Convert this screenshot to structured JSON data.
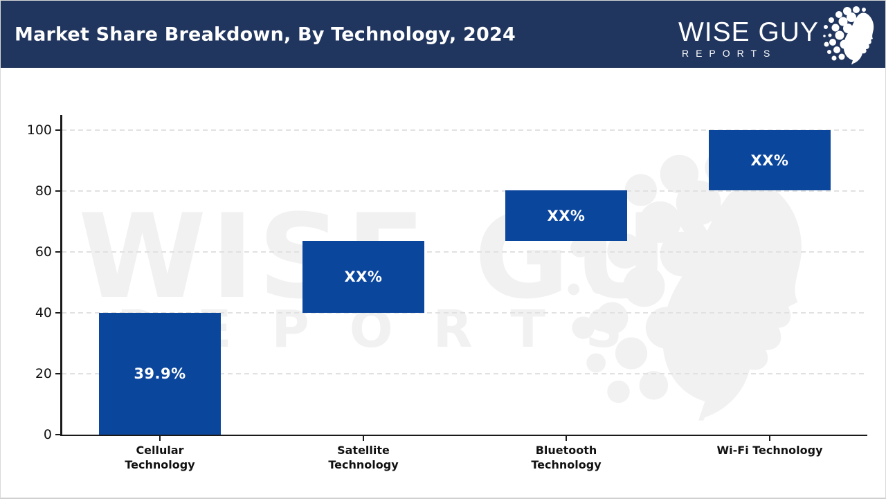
{
  "header": {
    "title": "Market Share Breakdown, By Technology, 2024",
    "bg_color": "#21365f",
    "logo": {
      "line1": "WISE GUY",
      "line2": "REPORTS",
      "icon": "face-profile-dots-icon",
      "color": "#ffffff"
    }
  },
  "watermark": {
    "line1": "WISE GUY",
    "line2": "REPORTS",
    "icon": "face-profile-dots-icon",
    "color": "#f1f1f1"
  },
  "chart_data": {
    "type": "bar",
    "subtype": "waterfall",
    "title": "Market Share Breakdown, By Technology, 2024",
    "xlabel": "",
    "ylabel": "",
    "ylim": [
      0,
      105
    ],
    "yticks": [
      0,
      20,
      40,
      60,
      80,
      100
    ],
    "grid": "horizontal dashed",
    "legend": "none",
    "bar_color": "#0b469d",
    "bar_label_color": "#ffffff",
    "axis_color": "#1a1a1a",
    "grid_color": "#e1e1e1",
    "categories": [
      [
        "Cellular",
        "Technology"
      ],
      [
        "Satellite",
        "Technology"
      ],
      [
        "Bluetooth",
        "Technology"
      ],
      [
        "Wi-Fi Technology"
      ]
    ],
    "bars": [
      {
        "name": "Cellular Technology",
        "start": 0,
        "end": 39.9,
        "label": "39.9%"
      },
      {
        "name": "Satellite Technology",
        "start": 39.9,
        "end": 63.6,
        "label": "XX%"
      },
      {
        "name": "Bluetooth Technology",
        "start": 63.6,
        "end": 80.2,
        "label": "XX%"
      },
      {
        "name": "Wi-Fi Technology",
        "start": 80.2,
        "end": 100,
        "label": "XX%"
      }
    ]
  }
}
